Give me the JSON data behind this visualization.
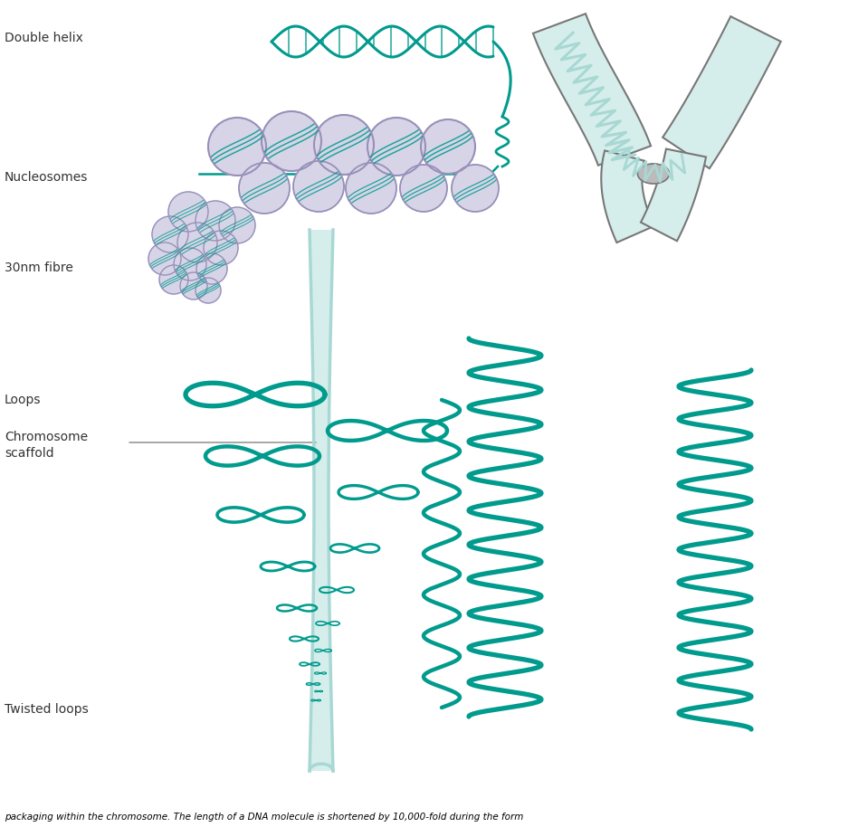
{
  "teal": "#009B8D",
  "light_teal": "#A8D8D4",
  "very_light_teal": "#D6EEEB",
  "lavender_light": "#D8D4E8",
  "lavender_dark": "#9890B8",
  "white": "#FFFFFF",
  "black": "#000000",
  "gray": "#666666",
  "label_color": "#333333",
  "labels": {
    "double_helix": "Double helix",
    "nucleosomes": "Nucleosomes",
    "fibre": "30nm fibre",
    "loops": "Loops",
    "scaffold": "Chromosome\nscaffold",
    "twisted": "Twisted loops"
  },
  "bottom_text": "packaging within the chromosome. The length of a DNA molecule is shortened by 10,000-fold during the form"
}
